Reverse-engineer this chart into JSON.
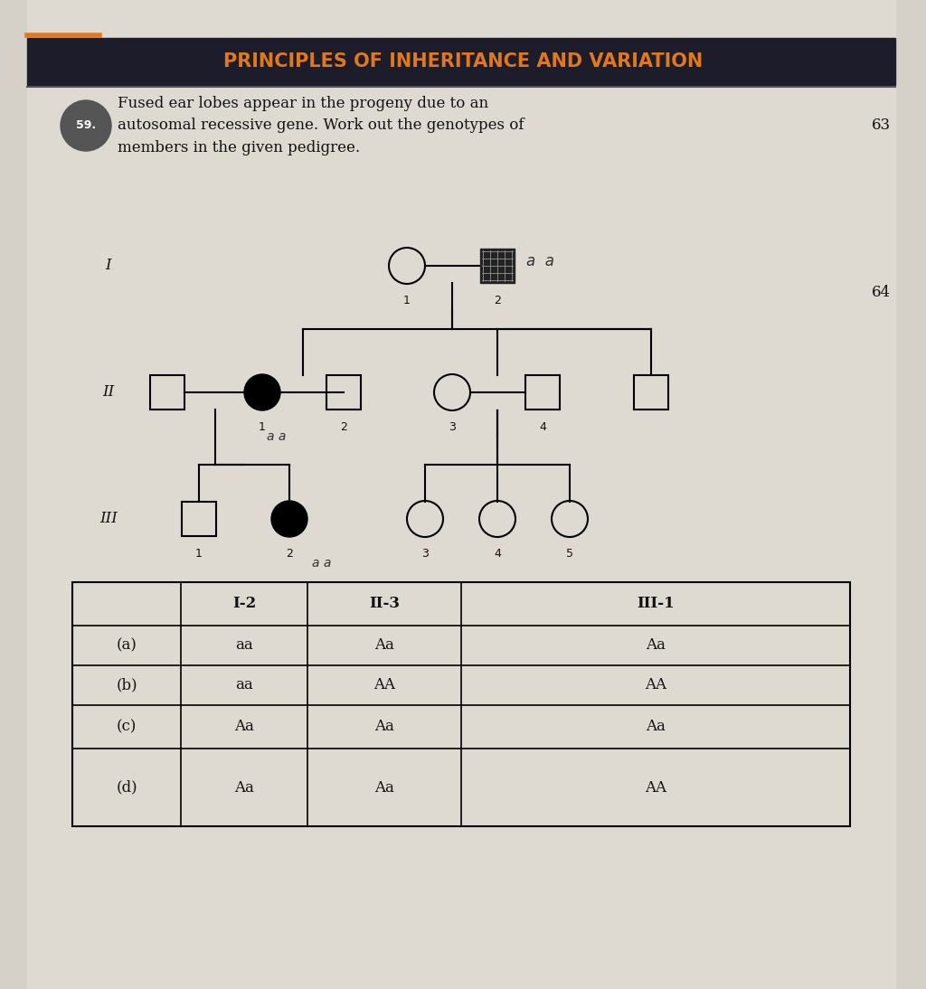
{
  "bg_color": "#d8d4cc",
  "page_bg": "#e8e4dc",
  "header_bar_color": "#1a1a2e",
  "header_text": "PRINCIPLES OF INHERITANCE AND VARIATION",
  "header_text_color": "#e07820",
  "header_accent_color": "#e07820",
  "question_number": "59.",
  "question_text": "Fused ear lobes appear in the progeny due to an\nautosomal recessive gene. Work out the genotypes of\nmembers in the given pedigree.",
  "side_number_63": "63",
  "side_number_64": "64",
  "table_headers": [
    "",
    "I-2",
    "II-3",
    "III-1"
  ],
  "table_rows": [
    [
      "(a)",
      "aa",
      "Aa",
      "Aa"
    ],
    [
      "(b)",
      "aa",
      "AA",
      "AA"
    ],
    [
      "(c)",
      "Aa",
      "Aa",
      "Aa"
    ],
    [
      "(d)",
      "Aa",
      "Aa",
      "AA"
    ]
  ],
  "roman_I": "I",
  "roman_II": "II",
  "roman_III": "III",
  "handwritten_I2": "aa",
  "handwritten_II2": "aa",
  "handwritten_III2": "aa"
}
